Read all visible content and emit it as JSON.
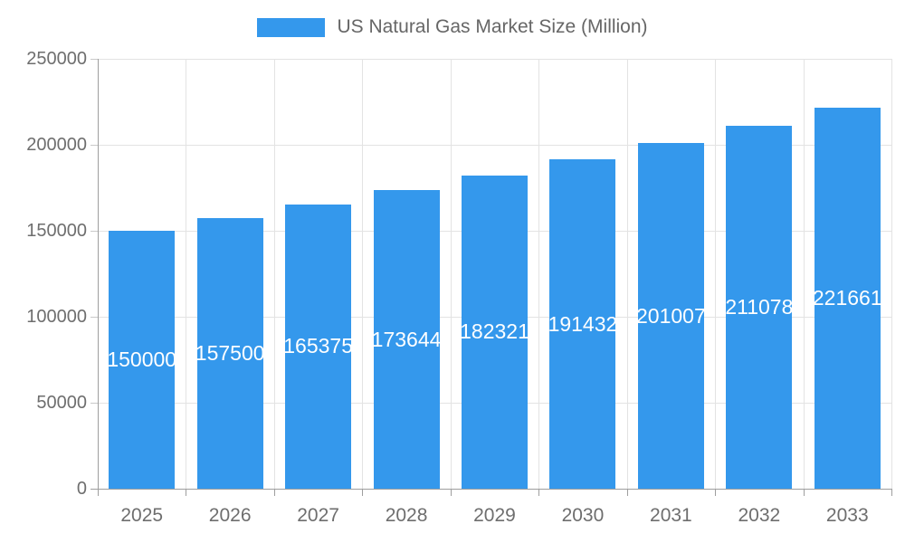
{
  "chart_data": {
    "type": "bar",
    "title": "US Natural Gas Market Size (Million)",
    "categories": [
      "2025",
      "2026",
      "2027",
      "2028",
      "2029",
      "2030",
      "2031",
      "2032",
      "2033"
    ],
    "values": [
      150000,
      157500,
      165375,
      173644,
      182321,
      191432,
      201007,
      211078,
      221661
    ],
    "value_labels": [
      "150000",
      "157500",
      "165375",
      "173644",
      "182321",
      "191432",
      "201007",
      "211078",
      "221661"
    ],
    "xlabel": "",
    "ylabel": "",
    "ylim": [
      0,
      250000
    ],
    "y_ticks": [
      0,
      50000,
      100000,
      150000,
      200000,
      250000
    ],
    "y_tick_labels": [
      "0",
      "50000",
      "100000",
      "150000",
      "200000",
      "250000"
    ],
    "grid": true,
    "legend_position": "top",
    "colors": {
      "bar": "#3498EC",
      "gridline": "#E3E3E3",
      "axis": "#9E9E9E",
      "tick_mark": "#C9C9C9",
      "tick_text": "#6E6E6E",
      "legend_text": "#666666",
      "value_text": "#FFFFFF",
      "background": "#FFFFFF"
    }
  }
}
